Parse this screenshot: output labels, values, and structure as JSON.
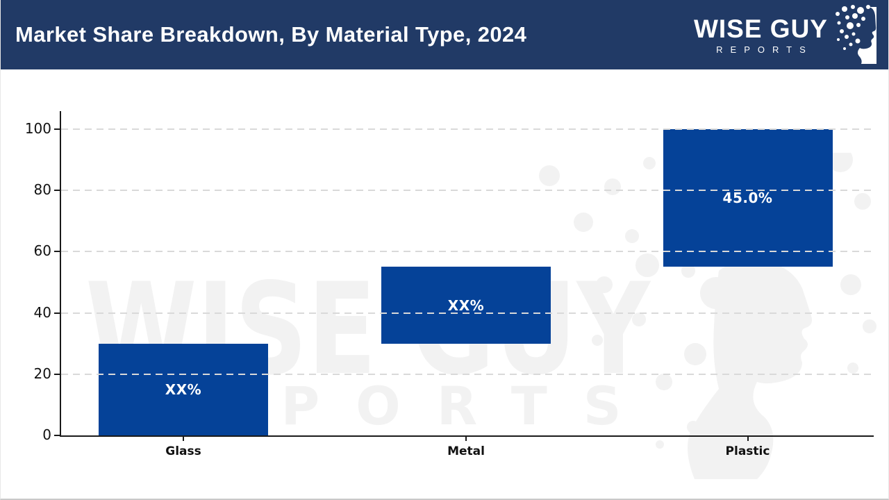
{
  "header": {
    "title": "Market Share Breakdown, By Material Type, 2024",
    "logo": {
      "primary": "WISE GUY",
      "secondary": "REPORTS"
    }
  },
  "watermark": {
    "primary": "WISE GUY",
    "secondary": "REPORTS"
  },
  "chart_data": {
    "type": "bar",
    "subtype": "floating-waterfall-shares",
    "title": "Market Share Breakdown, By Material Type, 2024",
    "categories": [
      "Glass",
      "Metal",
      "Plastic"
    ],
    "bars": [
      {
        "category": "Glass",
        "start": 0,
        "end": 30,
        "share_pct": 30,
        "value_label": "XX%"
      },
      {
        "category": "Metal",
        "start": 30,
        "end": 55,
        "share_pct": 25,
        "value_label": "XX%"
      },
      {
        "category": "Plastic",
        "start": 55,
        "end": 100,
        "share_pct": 45,
        "value_label": "45.0%"
      }
    ],
    "y_ticks": [
      0,
      20,
      40,
      60,
      80,
      100
    ],
    "ylim": [
      0,
      105
    ],
    "xlabel": "",
    "ylabel": "",
    "legend": "none",
    "grid": "horizontal-dashed-above-bars",
    "colors": {
      "bar": "#054298",
      "bar_label": "#ffffff",
      "grid_line": "#d9d9d9",
      "axis": "#1a1a1a",
      "tick_label": "#111111",
      "header_bg": "#213a66",
      "watermark": "#f2f2f2"
    }
  }
}
